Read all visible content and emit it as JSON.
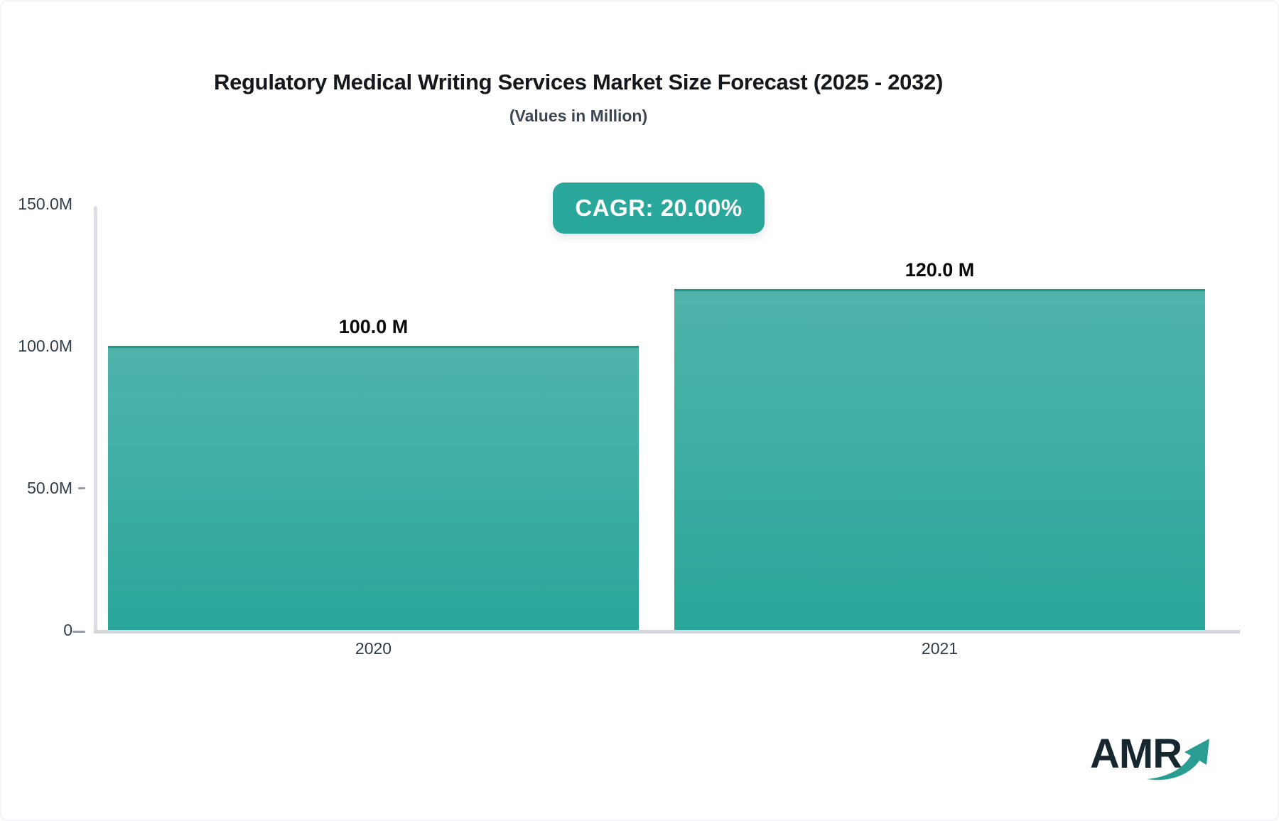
{
  "header": {
    "title": "Regulatory Medical Writing Services Market Size Forecast (2025 - 2032)",
    "subtitle": "(Values in Million)"
  },
  "cagr_badge": {
    "label": "CAGR: 20.00%",
    "background": "#2aa79b",
    "text_color": "#ffffff"
  },
  "chart_data": {
    "type": "bar",
    "title": "Regulatory Medical Writing Services Market Size Forecast (2025 - 2032)",
    "subtitle": "(Values in Million)",
    "unit": "Million",
    "categories": [
      "2020",
      "2021"
    ],
    "values": [
      100.0,
      120.0
    ],
    "bar_labels": [
      "100.0 M",
      "120.0 M"
    ],
    "cagr_percent": "20.00%",
    "y_ticks": [
      "150.0M",
      "100.0M",
      "50.0M",
      "0"
    ],
    "ylim": [
      0,
      150
    ],
    "grid": false,
    "legend": "none",
    "bar_color_top": "#50b4ab",
    "bar_color_bottom": "#2aa69a",
    "bar_edge_color": "#1d958c",
    "axis_color": "#d3d6dc"
  },
  "logo": {
    "text": "AMR",
    "text_color": "#162730",
    "arrow_icon": "trend-up-arrow",
    "arrow_color": "#2a9d92"
  }
}
